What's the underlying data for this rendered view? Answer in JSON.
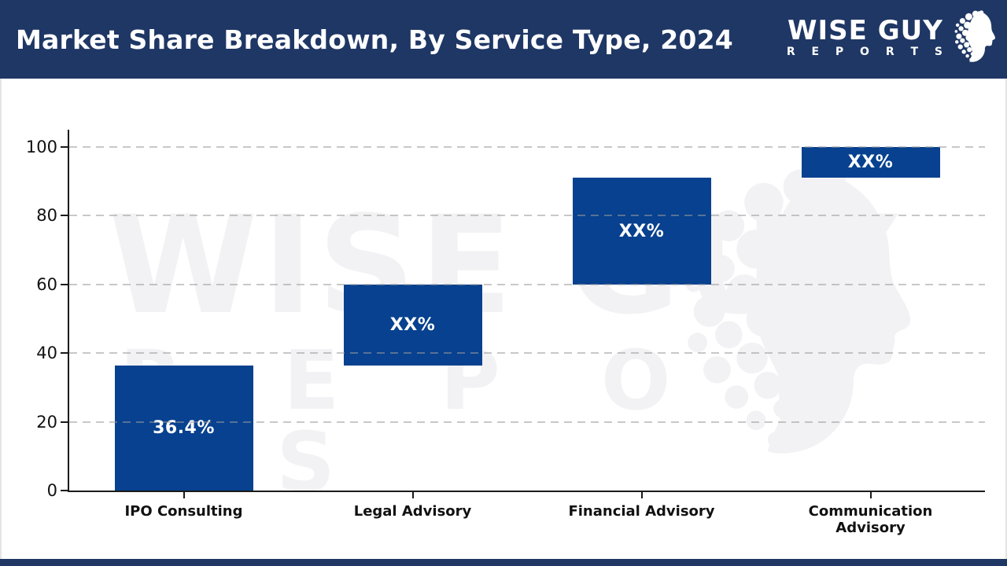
{
  "header": {
    "title": "Market Share Breakdown, By Service Type, 2024",
    "logo": {
      "line1": "WISE GUY",
      "line2": "R E P O R T S"
    }
  },
  "watermark": {
    "line1": "WISE GUY",
    "line2": "R E P O R T S"
  },
  "colors": {
    "header_bg": "#1F3765",
    "footer_bg": "#1F3765",
    "bar": "#07418F",
    "bar_label": "#FFFFFF",
    "axis": "#1A1A1A",
    "gridline": "#9B9B9B",
    "watermark": "#F2F2F4",
    "title_text": "#FFFFFF"
  },
  "chart_data": {
    "type": "bar",
    "subtype": "waterfall",
    "title": "Market Share Breakdown, By Service Type, 2024",
    "categories": [
      "IPO Consulting",
      "Legal Advisory",
      "Financial Advisory",
      "Communication Advisory"
    ],
    "segments": [
      {
        "category": "IPO Consulting",
        "start": 0,
        "end": 36.4,
        "label": "36.4%"
      },
      {
        "category": "Legal Advisory",
        "start": 36.4,
        "end": 60,
        "label": "XX%"
      },
      {
        "category": "Financial Advisory",
        "start": 60,
        "end": 91,
        "label": "XX%"
      },
      {
        "category": "Communication Advisory",
        "start": 91,
        "end": 100,
        "label": "XX%"
      }
    ],
    "xlabel": "",
    "ylabel": "",
    "ylim": [
      0,
      100
    ],
    "yticks": [
      0,
      20,
      40,
      60,
      80,
      100
    ],
    "grid": "horizontal-dashed-over-bars",
    "legend": "none"
  }
}
